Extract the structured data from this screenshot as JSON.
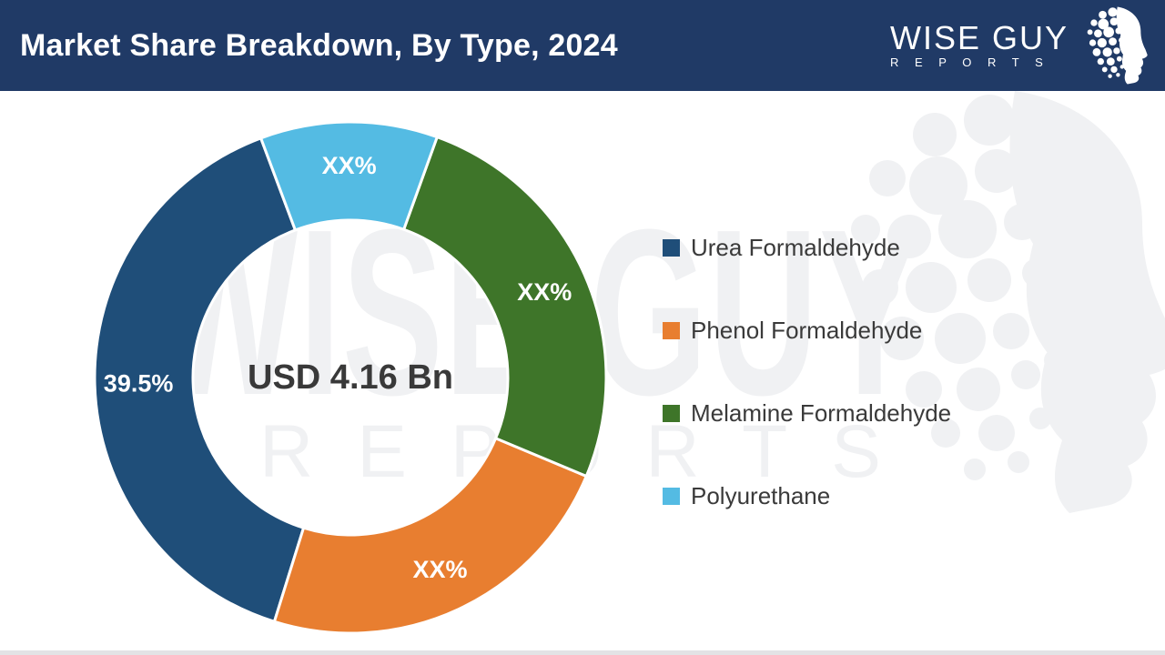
{
  "header": {
    "title": "Market Share Breakdown, By Type, 2024",
    "logo_name": "WISE GUY",
    "logo_sub": "R E P O R T S"
  },
  "watermark": {
    "line1": "WISE GUY",
    "line2": "REPORTS"
  },
  "chart_data": {
    "type": "pie",
    "donut": true,
    "title": "Market Share Breakdown, By Type, 2024",
    "center_text": "USD 4.16 Bn",
    "start_angle_deg": -20.5,
    "direction": "counterclockwise",
    "legend_position": "right",
    "segments": [
      {
        "label": "Urea Formaldehyde",
        "display_value": "39.5%",
        "value_pct": 39.5,
        "color": "#1F4E79"
      },
      {
        "label": "Phenol Formaldehyde",
        "display_value": "XX%",
        "value_pct": 23.5,
        "color": "#E87E30"
      },
      {
        "label": "Melamine Formaldehyde",
        "display_value": "XX%",
        "value_pct": 25.8,
        "color": "#3E7529"
      },
      {
        "label": "Polyurethane",
        "display_value": "XX%",
        "value_pct": 11.2,
        "color": "#54BBE3"
      }
    ]
  },
  "colors": {
    "header_bg": "#203A66",
    "text_dark": "#3a3a3a",
    "watermark": "#f0f1f3",
    "segment_stroke": "#ffffff",
    "footer_bar": "#e3e3e5"
  }
}
